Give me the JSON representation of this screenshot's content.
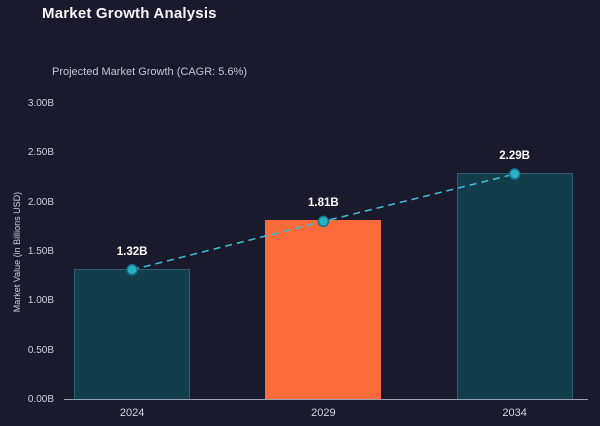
{
  "page": {
    "title": "Market Growth Analysis",
    "subtitle": "Projected Market Growth (CAGR: 5.6%)"
  },
  "chart_data": {
    "type": "bar",
    "title": "Market Growth Analysis",
    "subtitle": "Projected Market Growth (CAGR: 5.6%)",
    "categories": [
      "2024",
      "2029",
      "2034"
    ],
    "values": [
      1.32,
      1.81,
      2.29
    ],
    "value_labels": [
      "1.32B",
      "1.81B",
      "2.29B"
    ],
    "xlabel": "",
    "ylabel": "Market Value (in Billions USD)",
    "ylim": [
      0,
      3
    ],
    "ytick_labels": [
      "0.00B",
      "0.50B",
      "1.00B",
      "1.50B",
      "2.00B",
      "2.50B",
      "3.00B"
    ],
    "grid": false,
    "legend": "none",
    "trend_overlay": "dashed line with circular markers connecting bar tops",
    "colors": {
      "background": "#191a2b",
      "bar_fills": [
        "#123e4c",
        "#fb6a3a",
        "#123e4c"
      ],
      "bar_borders": [
        "#2e6072",
        "#fb6a3a",
        "#2e6072"
      ],
      "trend_line": "#3fb8cf",
      "marker_fill": "#2ab0c5",
      "marker_stroke": "#17758a",
      "axis_line": "#9aa0ae",
      "text": "#f4f5f7"
    }
  }
}
